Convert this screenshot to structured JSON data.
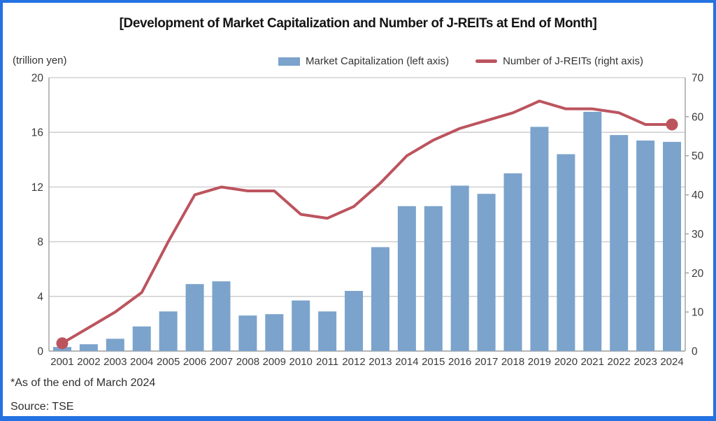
{
  "title": "[Development of Market Capitalization and Number of J-REITs at End of Month]",
  "unit_label": "(trillion yen)",
  "legend": [
    {
      "swatch": "bar",
      "label": "Market Capitalization (left axis)"
    },
    {
      "swatch": "line",
      "label": "Number of J-REITs (right axis)"
    }
  ],
  "footnotes": {
    "asof": "*As of the end of March 2024",
    "source": "Source: TSE"
  },
  "colors": {
    "bar": "#7BA3CC",
    "line": "#BC545E",
    "grid": "#C9C9C9",
    "axis": "#9E9E9E",
    "tick_text": "#3A3A3A",
    "border": "#2471E2",
    "background": "#FFFFFF"
  },
  "chart_data": {
    "type": "combo",
    "title": "[Development of Market Capitalization and Number of J-REITs at End of Month]",
    "categories": [
      "2001",
      "2002",
      "2003",
      "2004",
      "2005",
      "2006",
      "2007",
      "2008",
      "2009",
      "2010",
      "2011",
      "2012",
      "2013",
      "2014",
      "2015",
      "2016",
      "2017",
      "2018",
      "2019",
      "2020",
      "2021",
      "2022",
      "2023",
      "2024"
    ],
    "series": [
      {
        "name": "Market Capitalization (left axis)",
        "type": "bar",
        "axis": "left",
        "values": [
          0.3,
          0.5,
          0.9,
          1.8,
          2.9,
          4.9,
          5.1,
          2.6,
          2.7,
          3.7,
          2.9,
          4.4,
          7.6,
          10.6,
          10.6,
          12.1,
          11.5,
          13.0,
          16.4,
          14.4,
          17.5,
          15.8,
          15.4,
          15.3
        ]
      },
      {
        "name": "Number of J-REITs (right axis)",
        "type": "line",
        "axis": "right",
        "values": [
          2,
          6,
          10,
          15,
          28,
          40,
          42,
          41,
          41,
          35,
          34,
          37,
          43,
          50,
          54,
          57,
          59,
          61,
          64,
          62,
          62,
          61,
          58,
          58
        ],
        "markers": "first and last point only"
      }
    ],
    "left_axis": {
      "label": "(trillion yen)",
      "min": 0,
      "max": 20,
      "ticks": [
        0,
        4,
        8,
        12,
        16,
        20
      ]
    },
    "right_axis": {
      "label": "Number of J-REITs",
      "min": 0,
      "max": 70,
      "ticks": [
        0,
        10,
        20,
        30,
        40,
        50,
        60,
        70
      ]
    },
    "grid": "horizontal gridlines at left-axis ticks",
    "legend_position": "top",
    "xlabel": "",
    "ylabel": "(trillion yen)"
  }
}
